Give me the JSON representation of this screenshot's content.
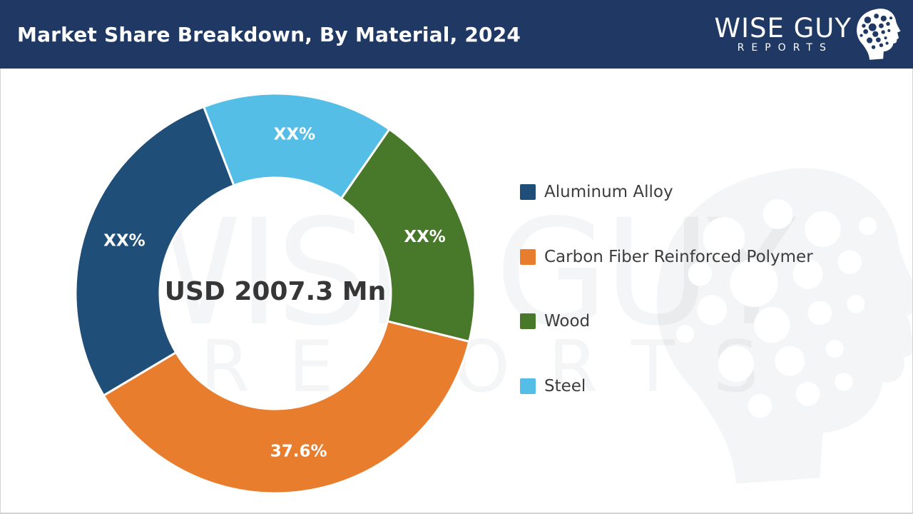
{
  "header": {
    "title": "Market Share Breakdown, By Material, 2024",
    "logo": {
      "brand": "WISE GUY",
      "sub": "REPORTS"
    }
  },
  "watermark": {
    "brand": "WISE GUY",
    "sub": "REPORTS"
  },
  "chart_data": {
    "type": "pie",
    "subtype": "donut",
    "title": "Market Share Breakdown, By Material, 2024",
    "center_label": "USD 2007.3 Mn",
    "start_angle_deg": 111,
    "direction": "counterclockwise",
    "legend_position": "right",
    "segments": [
      {
        "name": "Aluminum Alloy",
        "label": "XX%",
        "value_pct": 27.7,
        "color": "#1F4E79"
      },
      {
        "name": "Carbon Fiber Reinforced Polymer",
        "label": "37.6%",
        "value_pct": 37.6,
        "color": "#E87D2E"
      },
      {
        "name": "Wood",
        "label": "XX%",
        "value_pct": 19.2,
        "color": "#48792A"
      },
      {
        "name": "Steel",
        "label": "XX%",
        "value_pct": 15.5,
        "color": "#55BEE7"
      }
    ]
  },
  "colors": {
    "header_bg": "#1F3864",
    "border": "#D3D3D3",
    "center_text": "#363636",
    "legend_text": "#3D3D3D",
    "segment_label_text": "#FFFFFF"
  }
}
